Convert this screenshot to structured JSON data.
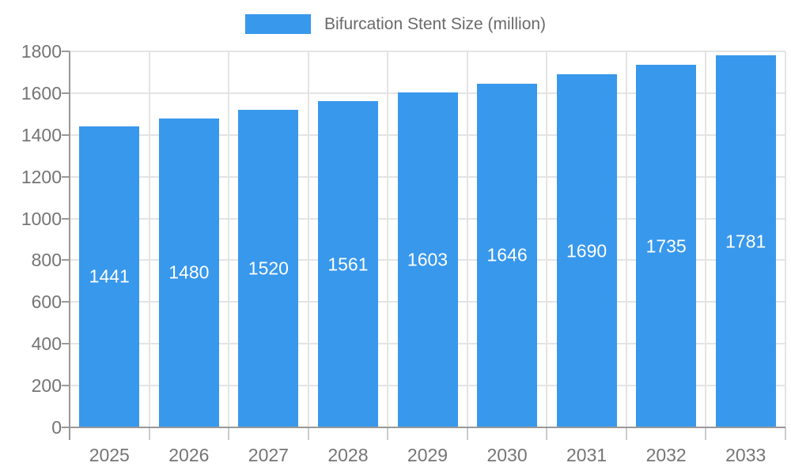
{
  "legend": {
    "label": "Bifurcation Stent Size (million)"
  },
  "colors": {
    "bar": "#3898EC",
    "axis": "#999999",
    "grid": "#e4e4e4",
    "tick": "#cccccc",
    "axis_label": "#757575",
    "legend_label": "#6a6a6a",
    "value_label": "#ffffff",
    "background": "#ffffff"
  },
  "chart_data": {
    "type": "bar",
    "title": "",
    "categories": [
      "2025",
      "2026",
      "2027",
      "2028",
      "2029",
      "2030",
      "2031",
      "2032",
      "2033"
    ],
    "series": [
      {
        "name": "Bifurcation Stent Size (million)",
        "values": [
          1441,
          1480,
          1520,
          1561,
          1603,
          1646,
          1690,
          1735,
          1781
        ]
      }
    ],
    "xlabel": "",
    "ylabel": "",
    "ylim": [
      0,
      1800
    ],
    "yticks": [
      0,
      200,
      400,
      600,
      800,
      1000,
      1200,
      1400,
      1600,
      1800
    ],
    "grid": true,
    "legend_position": "top",
    "value_labels": "inside-center"
  }
}
